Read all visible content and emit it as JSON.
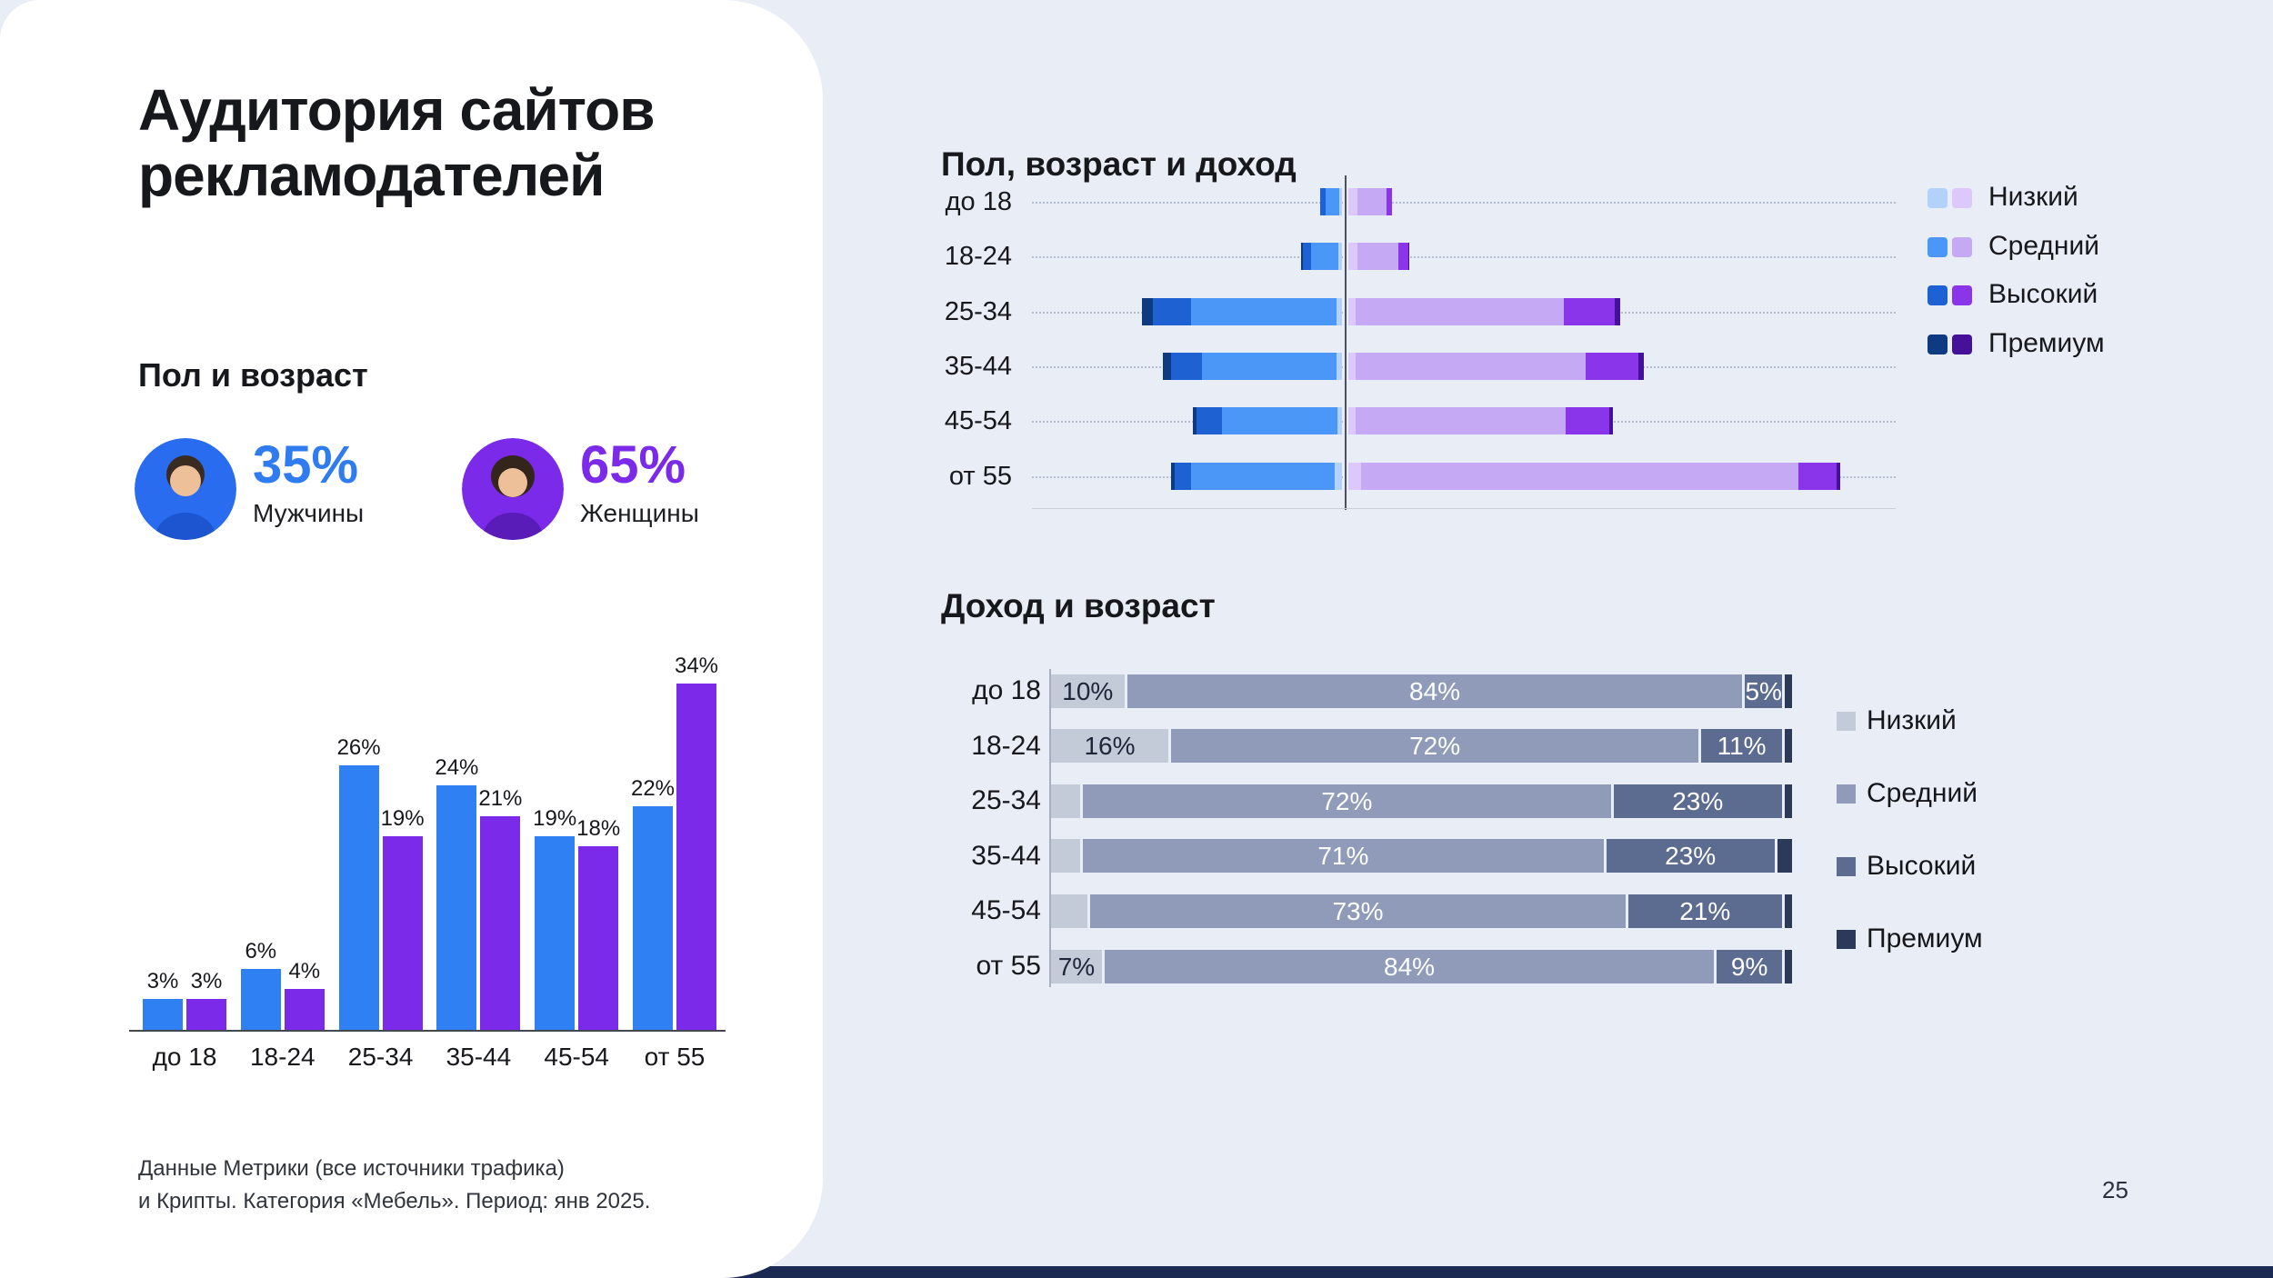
{
  "page": {
    "background": "#e8edf6",
    "bottom_bar_color": "#1b2a52",
    "page_number": "25"
  },
  "left_panel": {
    "title_line1": "Аудитория сайтов",
    "title_line2": "рекламодателей",
    "section_title": "Пол и возраст",
    "gender_stats": [
      {
        "avatar": "male-avatar",
        "percent": "35%",
        "label": "Мужчины",
        "color": "#2e7cf0"
      },
      {
        "avatar": "female-avatar",
        "percent": "65%",
        "label": "Женщины",
        "color": "#7a2ae8"
      }
    ],
    "footnote_line1": "Данные Метрики (все источники трафика)",
    "footnote_line2": "и Крипты. Категория «Мебель». Период: янв 2025."
  },
  "chart_data": [
    {
      "id": "gender_age_bars",
      "type": "bar",
      "title": "Пол и возраст",
      "categories": [
        "до 18",
        "18-24",
        "25-34",
        "35-44",
        "45-54",
        "от 55"
      ],
      "series": [
        {
          "name": "Мужчины",
          "color": "#2f80f2",
          "values": [
            3,
            6,
            26,
            24,
            19,
            22
          ]
        },
        {
          "name": "Женщины",
          "color": "#7a2ae8",
          "values": [
            3,
            4,
            19,
            21,
            18,
            34
          ]
        }
      ],
      "value_suffix": "%",
      "ylim": [
        0,
        36
      ],
      "grid": false
    },
    {
      "id": "gender_age_income_butterfly",
      "type": "bar",
      "subtype": "diverging-stacked",
      "title": "Пол, возраст и доход",
      "categories": [
        "до 18",
        "18-24",
        "25-34",
        "35-44",
        "45-54",
        "от 55"
      ],
      "units": "relative, longest bar = 100",
      "legend_position": "right",
      "legend": [
        {
          "key": "low",
          "label": "Низкий",
          "male_color": "#b3d2fb",
          "female_color": "#dcc8fa"
        },
        {
          "key": "medium",
          "label": "Средний",
          "male_color": "#4a97f7",
          "female_color": "#c6a9f4"
        },
        {
          "key": "high",
          "label": "Высокий",
          "male_color": "#1d61d3",
          "female_color": "#8a35ea"
        },
        {
          "key": "premium",
          "label": "Премиум",
          "male_color": "#0d3a80",
          "female_color": "#45119b"
        }
      ],
      "male": [
        [
          0.6,
          2.8,
          1.1,
          0
        ],
        [
          0.7,
          5.6,
          1.7,
          0.3
        ],
        [
          1.1,
          29.7,
          7.8,
          2.2
        ],
        [
          1.1,
          27.5,
          6.3,
          1.5
        ],
        [
          0.9,
          23.6,
          5.2,
          0.7
        ],
        [
          1.5,
          29.3,
          3.3,
          0.7
        ]
      ],
      "female": [
        [
          1.9,
          5.9,
          1.1,
          0
        ],
        [
          1.9,
          8.2,
          2.2,
          0.2
        ],
        [
          1.5,
          42.3,
          10.4,
          1.1
        ],
        [
          1.5,
          46.8,
          10.8,
          1.1
        ],
        [
          1.5,
          42.7,
          8.9,
          0.7
        ],
        [
          2.6,
          89.1,
          7.8,
          0.6
        ]
      ]
    },
    {
      "id": "income_age_stacked",
      "type": "bar",
      "subtype": "stacked-horizontal-100",
      "title": "Доход и возраст",
      "categories": [
        "до 18",
        "18-24",
        "25-34",
        "35-44",
        "45-54",
        "от 55"
      ],
      "legend_position": "right",
      "legend": [
        {
          "key": "low",
          "label": "Низкий",
          "color": "#c3cad8"
        },
        {
          "key": "medium",
          "label": "Средний",
          "color": "#8f9bb8"
        },
        {
          "key": "high",
          "label": "Высокий",
          "color": "#5c6b90"
        },
        {
          "key": "premium",
          "label": "Премиум",
          "color": "#2c3a59"
        }
      ],
      "rows": [
        {
          "values": [
            10,
            84,
            5,
            1
          ],
          "labels": [
            "10%",
            "84%",
            "5%",
            ""
          ]
        },
        {
          "values": [
            16,
            72,
            11,
            1
          ],
          "labels": [
            "16%",
            "72%",
            "11%",
            ""
          ]
        },
        {
          "values": [
            4,
            72,
            23,
            1
          ],
          "labels": [
            "",
            "72%",
            "23%",
            ""
          ]
        },
        {
          "values": [
            4,
            71,
            23,
            2
          ],
          "labels": [
            "",
            "71%",
            "23%",
            ""
          ]
        },
        {
          "values": [
            5,
            73,
            21,
            1
          ],
          "labels": [
            "",
            "73%",
            "21%",
            ""
          ]
        },
        {
          "values": [
            7,
            84,
            9,
            1
          ],
          "labels": [
            "7%",
            "84%",
            "9%",
            ""
          ]
        }
      ]
    }
  ]
}
